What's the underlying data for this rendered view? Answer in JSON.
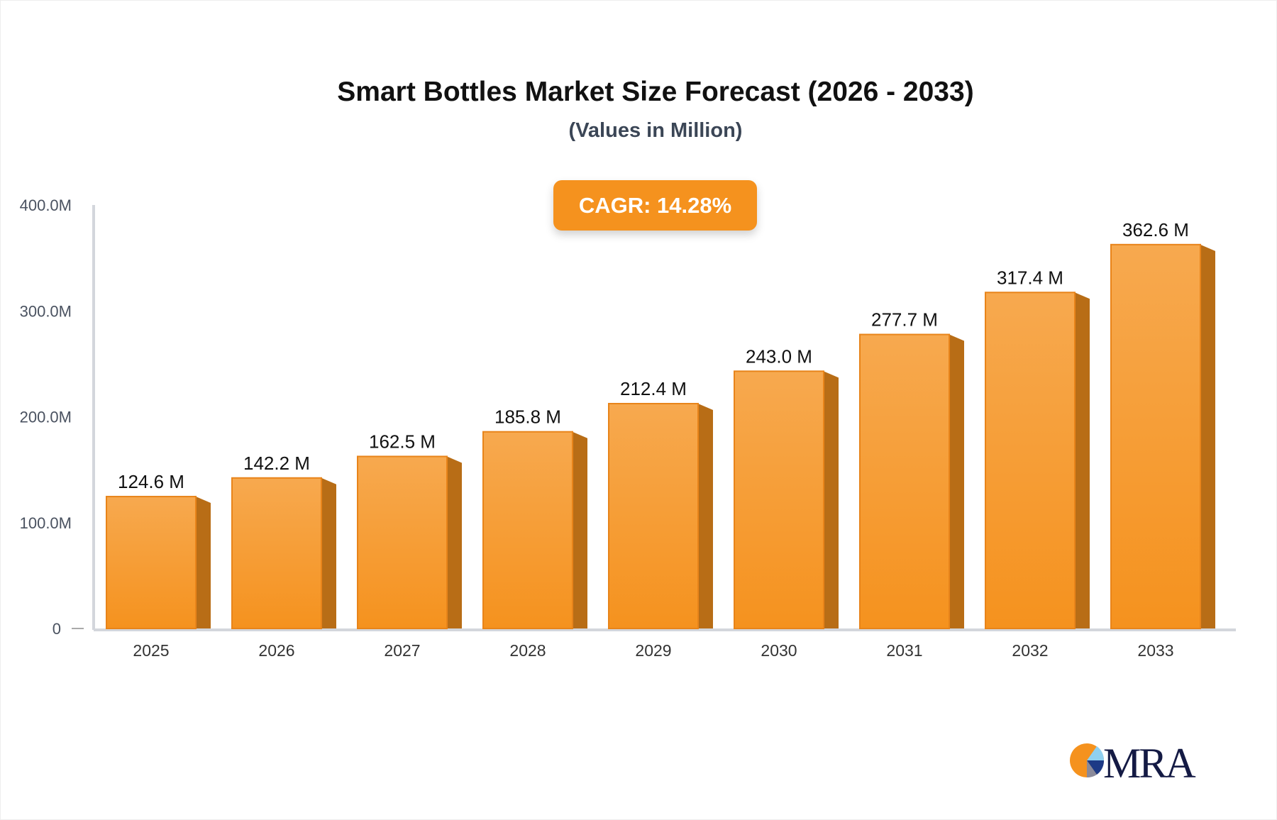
{
  "chart_data": {
    "type": "bar",
    "title": "Smart Bottles Market Size Forecast (2026 - 2033)",
    "subtitle": "(Values in Million)",
    "badge": "CAGR: 14.28%",
    "categories": [
      "2025",
      "2026",
      "2027",
      "2028",
      "2029",
      "2030",
      "2031",
      "2032",
      "2033"
    ],
    "values": [
      124.6,
      142.2,
      162.5,
      185.8,
      212.4,
      243.0,
      277.7,
      317.4,
      362.6
    ],
    "data_labels": [
      "124.6 M",
      "142.2 M",
      "162.5 M",
      "185.8 M",
      "212.4 M",
      "243.0 M",
      "277.7 M",
      "317.4 M",
      "362.6 M"
    ],
    "yticks": [
      0,
      100,
      200,
      300,
      400
    ],
    "ytick_labels": [
      "0",
      "100.0M",
      "200.0M",
      "300.0M",
      "400.0M"
    ],
    "ylim": [
      0,
      400
    ],
    "grid": false,
    "colors": {
      "bar": "#f5921e",
      "bar_top": "#f7a94f",
      "side": "#b86d16",
      "badge": "#f5921e",
      "axis": "#d3d6dc"
    }
  },
  "logo": {
    "text": "MRA"
  }
}
